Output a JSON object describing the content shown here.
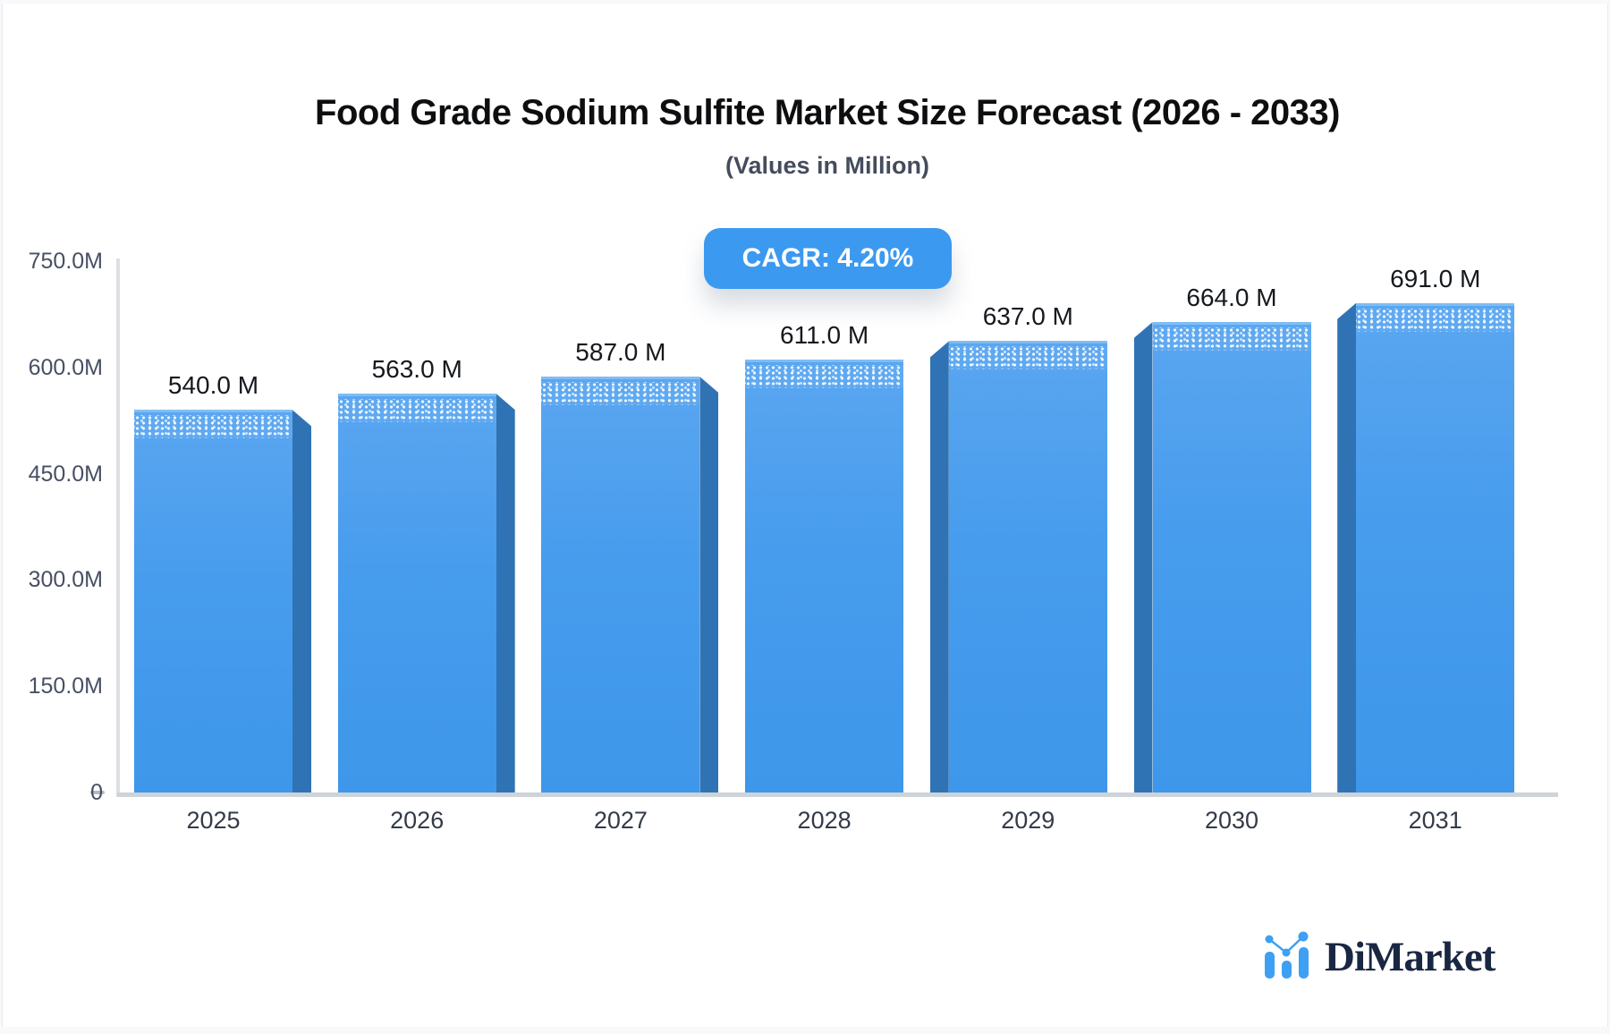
{
  "header": {
    "title": "Food Grade Sodium Sulfite Market Size Forecast (2026 - 2033)",
    "subtitle": "(Values in Million)"
  },
  "badge": {
    "label": "CAGR: 4.20%",
    "bg": "#3b99f0",
    "text_color": "#ffffff"
  },
  "chart_data": {
    "type": "bar",
    "title": "Food Grade Sodium Sulfite Market Size Forecast (2026 - 2033)",
    "subtitle": "(Values in Million)",
    "categories": [
      "2025",
      "2026",
      "2027",
      "2028",
      "2029",
      "2030",
      "2031"
    ],
    "values": [
      540,
      563,
      587,
      611,
      637,
      664,
      691
    ],
    "value_labels": [
      "540.0 M",
      "563.0 M",
      "587.0 M",
      "611.0 M",
      "637.0 M",
      "664.0 M",
      "691.0 M"
    ],
    "y_ticks": [
      "750.0M",
      "600.0M",
      "450.0M",
      "300.0M",
      "150.0M",
      "0"
    ],
    "y_tick_values": [
      750,
      600,
      450,
      300,
      150,
      0
    ],
    "ylim": [
      0,
      750
    ],
    "xlabel": "",
    "ylabel": "",
    "grid": "off",
    "legend": "none",
    "bar_color_top": "#5aa6f0",
    "bar_color_mid": "#479ced",
    "bar_color_bottom": "#3e97ea",
    "bar_side_color": "#2f73b5",
    "bar_top_stipple_color": "#5fa9f1"
  },
  "logo": {
    "text": "DiMarket",
    "icon": "bar-line-chart-icon",
    "text_color": "#1a2742",
    "icon_color": "#3ea0f2"
  }
}
